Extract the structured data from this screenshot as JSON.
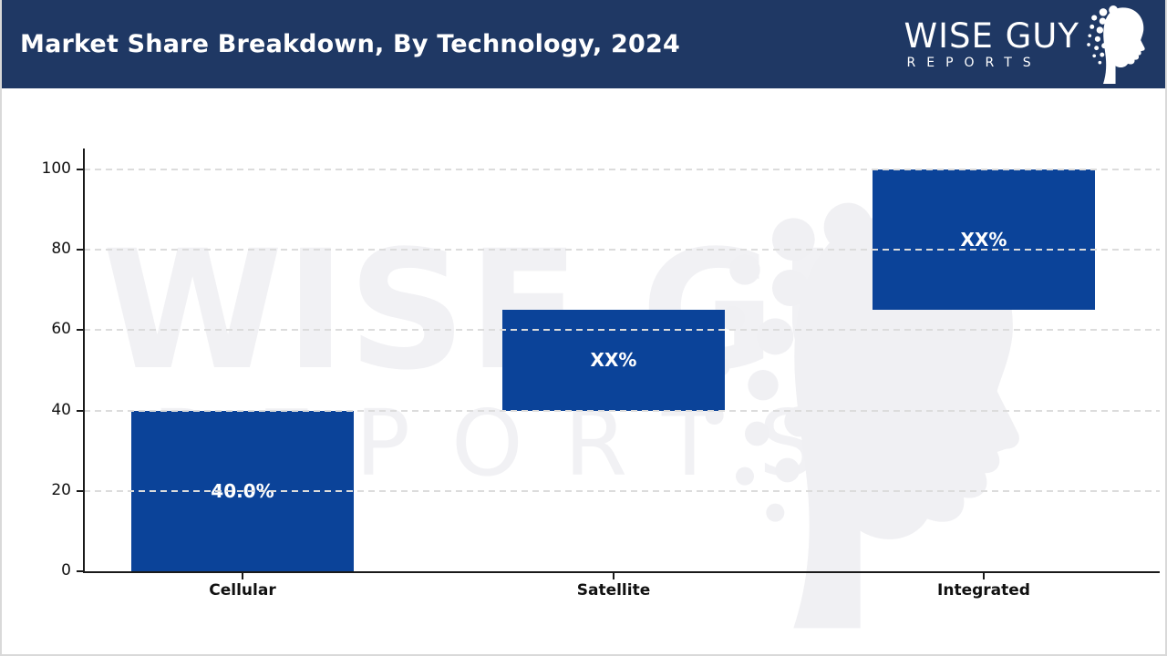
{
  "header": {
    "title": "Market Share Breakdown, By Technology, 2024",
    "logo_line1": "WISE GUY",
    "logo_line2": "REPORTS",
    "bg_color": "#1f3864"
  },
  "watermark": {
    "line1": "WISE GUY",
    "line2": "REPORTS"
  },
  "chart_data": {
    "type": "bar",
    "variant": "floating-waterfall",
    "title": "Market Share Breakdown, By Technology, 2024",
    "categories": [
      "Cellular",
      "Satellite",
      "Integrated"
    ],
    "bars": [
      {
        "category": "Cellular",
        "start": 0,
        "end": 40,
        "label": "40.0%"
      },
      {
        "category": "Satellite",
        "start": 40,
        "end": 65,
        "label": "XX%"
      },
      {
        "category": "Integrated",
        "start": 65,
        "end": 100,
        "label": "XX%"
      }
    ],
    "ylim": [
      0,
      100
    ],
    "yticks": [
      0,
      20,
      40,
      60,
      80,
      100
    ],
    "bar_color": "#0b4399",
    "axis_color": "#1a1a1a",
    "grid": {
      "axis": "y",
      "style": "dashed",
      "color": "#dcdcdc",
      "over_bars": true
    },
    "legend": "none"
  }
}
